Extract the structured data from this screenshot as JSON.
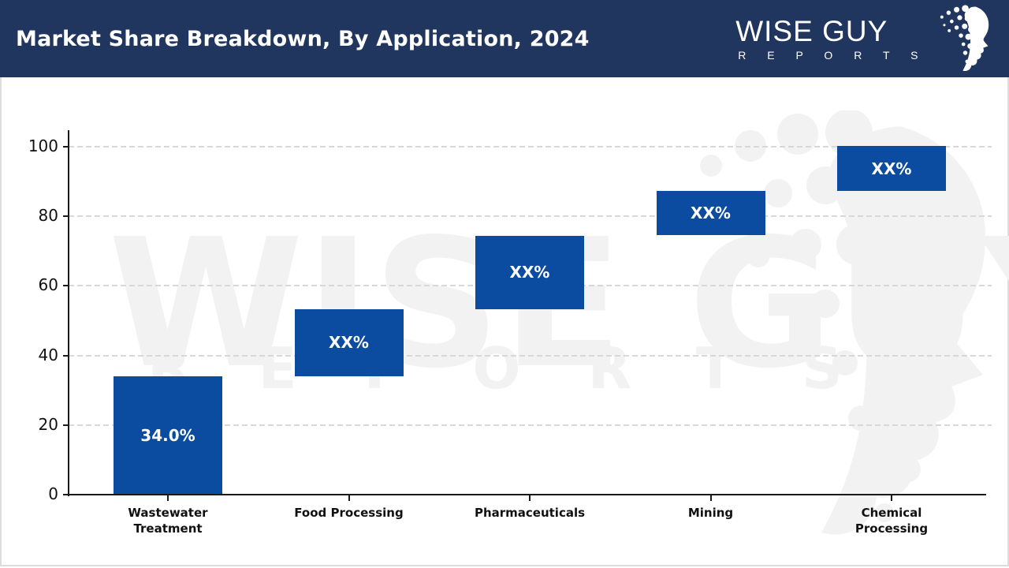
{
  "header": {
    "title": "Market Share Breakdown, By Application, 2024",
    "bg_color": "#20365F",
    "logo": {
      "primary": "WISE GUY",
      "secondary": "R E P O R T S",
      "face_icon": "dotted-head-icon"
    }
  },
  "watermark": {
    "primary": "WISE GUY",
    "secondary": "REPORTS"
  },
  "chart_data": {
    "type": "bar",
    "subtype": "floating-waterfall",
    "title": "Market Share Breakdown, By Application, 2024",
    "categories": [
      "Wastewater Treatment",
      "Food Processing",
      "Pharmaceuticals",
      "Mining",
      "Chemical Processing"
    ],
    "bars": [
      {
        "category": "Wastewater Treatment",
        "start": 0,
        "end": 34,
        "label": "34.0%"
      },
      {
        "category": "Food Processing",
        "start": 34,
        "end": 53.3,
        "label": "XX%"
      },
      {
        "category": "Pharmaceuticals",
        "start": 53.3,
        "end": 74.4,
        "label": "XX%"
      },
      {
        "category": "Mining",
        "start": 74.6,
        "end": 87.2,
        "label": "XX%"
      },
      {
        "category": "Chemical Processing",
        "start": 87.2,
        "end": 100.2,
        "label": "XX%"
      }
    ],
    "yticks": [
      0,
      20,
      40,
      60,
      80,
      100
    ],
    "ylim": [
      0,
      104.5
    ],
    "xlabel": "",
    "ylabel": "",
    "grid": true,
    "grid_style": "dashed",
    "legend": false,
    "bar_color": "#0B4BA0",
    "value_label_color": "#FFFFFF",
    "axis_color": "#1A1A1A",
    "grid_color": "#D8D8D8"
  }
}
